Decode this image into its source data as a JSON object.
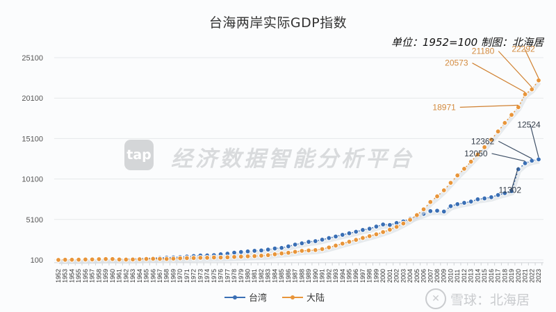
{
  "chart_data": {
    "type": "line",
    "title": "台海两岸实际GDP指数",
    "subtitle": "单位：1952=100  制图：北海居",
    "xlabel": "",
    "ylabel": "",
    "ylim": [
      100,
      25100
    ],
    "yticks": [
      100,
      5100,
      10100,
      15100,
      20100,
      25100
    ],
    "grid": true,
    "legend_position": "bottom",
    "x": [
      1952,
      1953,
      1954,
      1955,
      1956,
      1957,
      1958,
      1959,
      1960,
      1961,
      1962,
      1963,
      1964,
      1965,
      1966,
      1967,
      1968,
      1969,
      1970,
      1971,
      1972,
      1973,
      1974,
      1975,
      1976,
      1977,
      1978,
      1979,
      1980,
      1981,
      1982,
      1983,
      1984,
      1985,
      1986,
      1987,
      1988,
      1989,
      1990,
      1991,
      1992,
      1993,
      1994,
      1995,
      1996,
      1997,
      1998,
      1999,
      2000,
      2001,
      2002,
      2003,
      2004,
      2005,
      2006,
      2007,
      2008,
      2009,
      2010,
      2011,
      2012,
      2013,
      2014,
      2015,
      2016,
      2017,
      2018,
      2019,
      2020,
      2021,
      2022,
      2023
    ],
    "series": [
      {
        "name": "台湾",
        "color": "#3a6fb5",
        "values": [
          100,
          109,
          120,
          130,
          137,
          147,
          157,
          169,
          180,
          192,
          210,
          230,
          258,
          287,
          313,
          347,
          378,
          409,
          454,
          512,
          581,
          650,
          657,
          693,
          793,
          874,
          991,
          1073,
          1151,
          1222,
          1268,
          1371,
          1510,
          1582,
          1771,
          1993,
          2150,
          2330,
          2415,
          2600,
          2800,
          2990,
          3200,
          3390,
          3580,
          3800,
          3950,
          4220,
          4480,
          4420,
          4660,
          4860,
          5190,
          5480,
          5780,
          6130,
          6180,
          6080,
          6740,
          6990,
          7150,
          7310,
          7590,
          7700,
          7850,
          8120,
          8350,
          8600,
          11302,
          12050,
          12362,
          12524
        ]
      },
      {
        "name": "大陆",
        "color": "#e8953a",
        "values": [
          100,
          116,
          121,
          129,
          148,
          155,
          188,
          204,
          204,
          149,
          140,
          155,
          183,
          214,
          237,
          224,
          215,
          252,
          300,
          321,
          333,
          359,
          367,
          398,
          391,
          421,
          467,
          502,
          542,
          570,
          621,
          688,
          793,
          899,
          979,
          1093,
          1216,
          1265,
          1313,
          1434,
          1638,
          1867,
          2111,
          2342,
          2575,
          2813,
          3033,
          3264,
          3538,
          3832,
          4180,
          4599,
          5064,
          5639,
          6353,
          7256,
          7955,
          8702,
          9627,
          10542,
          11362,
          12242,
          13124,
          14032,
          14964,
          15976,
          17035,
          18030,
          18971,
          20573,
          21180,
          22292
        ]
      }
    ],
    "annotations": [
      {
        "series": "大陆",
        "year": 2020,
        "label": "18971"
      },
      {
        "series": "大陆",
        "year": 2021,
        "label": "20573"
      },
      {
        "series": "大陆",
        "year": 2022,
        "label": "21180"
      },
      {
        "series": "大陆",
        "year": 2023,
        "label": "22292"
      },
      {
        "series": "台湾",
        "year": 2020,
        "label": "11302"
      },
      {
        "series": "台湾",
        "year": 2021,
        "label": "12050"
      },
      {
        "series": "台湾",
        "year": 2022,
        "label": "12362"
      },
      {
        "series": "台湾",
        "year": 2023,
        "label": "12524"
      }
    ]
  },
  "header": {
    "title": "台海两岸实际GDP指数",
    "subtitle": "单位：1952=100  制图：北海居"
  },
  "legend": [
    {
      "label": "台湾",
      "color": "#3a6fb5"
    },
    {
      "label": "大陆",
      "color": "#e8953a"
    }
  ],
  "watermark": {
    "logo_text": "tap",
    "text": "经济数据智能分析平台"
  },
  "footer": {
    "xueqiu": "雪球：北海居"
  }
}
